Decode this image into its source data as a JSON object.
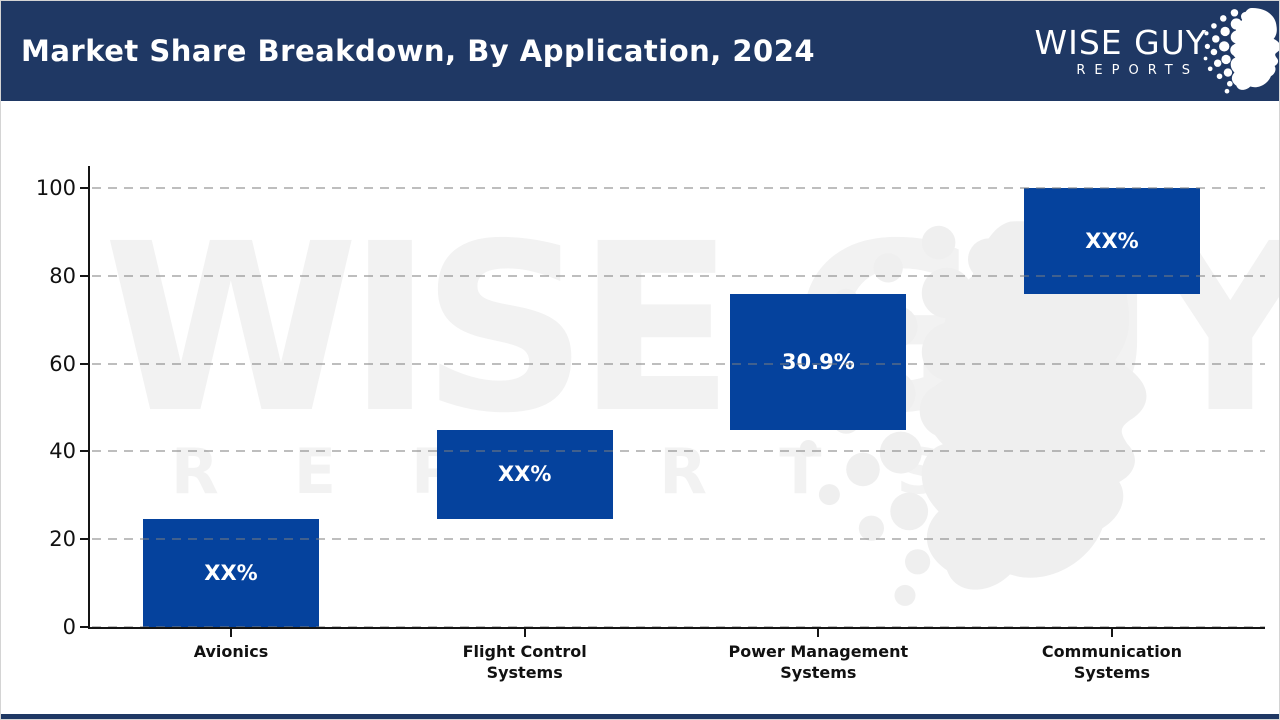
{
  "header": {
    "title": "Market Share Breakdown, By Application, 2024",
    "logo": {
      "name": "WISE GUY",
      "tagline": "REPORTS"
    }
  },
  "watermark": {
    "name": "WISE GUY",
    "tagline": "REPORTS"
  },
  "colors": {
    "header_bg": "#1f3864",
    "footer_bg": "#1f3864",
    "bar": "#05429d",
    "bar_label": "#ffffff",
    "grid": "rgba(125,125,125,0.5)",
    "axis": "#151515",
    "watermark": "#f2f2f2"
  },
  "chart_data": {
    "type": "bar",
    "variant": "floating-waterfall",
    "title": "Market Share Breakdown, By Application, 2024",
    "categories": [
      "Avionics",
      "Flight Control\nSystems",
      "Power Management\nSystems",
      "Communication\nSystems"
    ],
    "segments": [
      {
        "category": "Avionics",
        "start": 0,
        "end": 24.6,
        "label": "XX%"
      },
      {
        "category": "Flight Control Systems",
        "start": 24.6,
        "end": 44.9,
        "label": "XX%"
      },
      {
        "category": "Power Management Systems",
        "start": 44.9,
        "end": 75.8,
        "label": "30.9%"
      },
      {
        "category": "Communication Systems",
        "start": 75.8,
        "end": 100,
        "label": "XX%"
      }
    ],
    "yticks": [
      0,
      20,
      40,
      60,
      80,
      100
    ],
    "ylim": [
      0,
      105
    ],
    "xlabel": "",
    "ylabel": "",
    "legend": "none",
    "grid": "horizontal-dashed"
  }
}
